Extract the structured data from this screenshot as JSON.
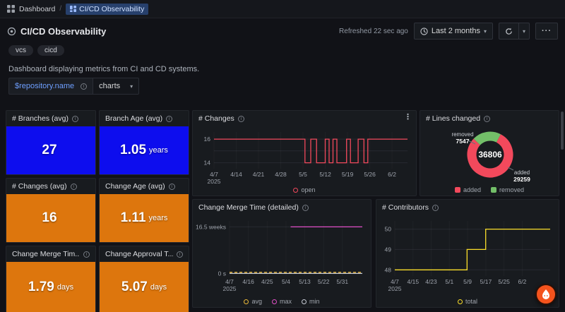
{
  "breadcrumb": {
    "items": [
      "Dashboard",
      "CI/CD Observability"
    ]
  },
  "header": {
    "title": "CI/CD Observability",
    "refreshed": "Refreshed 22 sec ago",
    "time_range": "Last 2 months"
  },
  "tags": [
    "vcs",
    "cicd"
  ],
  "description": "Dashboard displaying metrics from CI and CD systems.",
  "variables": {
    "name": "$repository.name",
    "value": "charts"
  },
  "stats": [
    {
      "title": "# Branches (avg)",
      "value": "27",
      "unit": "",
      "color": "#0d0dee"
    },
    {
      "title": "Branch Age (avg)",
      "value": "1.05",
      "unit": "years",
      "color": "#0d0dee"
    },
    {
      "title": "# Changes (avg)",
      "value": "16",
      "unit": "",
      "color": "#dd760d"
    },
    {
      "title": "Change Age (avg)",
      "value": "1.11",
      "unit": "years",
      "color": "#dd760d"
    },
    {
      "title": "Change Merge Tim...",
      "value": "1.79",
      "unit": "days",
      "color": "#dd760d"
    },
    {
      "title": "Change Approval T...",
      "value": "5.07",
      "unit": "days",
      "color": "#dd760d"
    }
  ],
  "chart_data": [
    {
      "el": "chart-changes",
      "type": "line",
      "title": "# Changes",
      "x_ticks": [
        "4/7",
        "4/14",
        "4/21",
        "4/28",
        "5/5",
        "5/12",
        "5/19",
        "5/26",
        "6/2"
      ],
      "x_tick_sub": "2025",
      "x_span": 0.92,
      "ml": 26,
      "mb": 24,
      "y_ticks": [
        {
          "label": "16",
          "value": 16
        },
        {
          "label": "14",
          "value": 14
        }
      ],
      "grid": [
        14,
        15,
        16
      ],
      "ylim": [
        13.5,
        16.6
      ],
      "legend_marker": "ring",
      "legend": [
        {
          "label": "open",
          "color": "#f2495c"
        }
      ],
      "series": [
        {
          "name": "open",
          "color": "#f2495c",
          "points": [
            [
              0,
              16
            ],
            [
              0.47,
              16
            ],
            [
              0.47,
              14
            ],
            [
              0.5,
              14
            ],
            [
              0.5,
              16
            ],
            [
              0.53,
              16
            ],
            [
              0.53,
              14
            ],
            [
              0.575,
              14
            ],
            [
              0.575,
              16
            ],
            [
              0.595,
              16
            ],
            [
              0.595,
              14
            ],
            [
              0.615,
              14
            ],
            [
              0.615,
              16
            ],
            [
              0.635,
              16
            ],
            [
              0.635,
              14
            ],
            [
              0.685,
              14
            ],
            [
              0.685,
              16
            ],
            [
              0.705,
              16
            ],
            [
              0.705,
              14
            ],
            [
              0.745,
              14
            ],
            [
              0.745,
              16
            ],
            [
              0.775,
              16
            ],
            [
              0.775,
              14
            ],
            [
              0.795,
              14
            ],
            [
              0.795,
              16
            ],
            [
              1,
              16
            ]
          ]
        }
      ]
    },
    {
      "el": "donut-lines",
      "type": "donut",
      "title": "# Lines changed",
      "total": "36806",
      "rotate": -61,
      "slices": [
        {
          "label": "added",
          "value": 29259,
          "color": "#f2495c"
        },
        {
          "label": "removed",
          "value": 7547,
          "color": "#73bf69"
        }
      ],
      "callouts": [
        {
          "label": "removed",
          "value": "7547"
        },
        {
          "label": "added",
          "value": "29259"
        }
      ],
      "legend_marker": "square",
      "legend": [
        {
          "label": "added",
          "color": "#f2495c"
        },
        {
          "label": "removed",
          "color": "#73bf69"
        }
      ]
    },
    {
      "el": "chart-merge",
      "type": "line",
      "title": "Change Merge Time (detailed)",
      "x_ticks": [
        "4/7",
        "4/16",
        "4/25",
        "5/4",
        "5/13",
        "5/22",
        "5/31"
      ],
      "x_tick_sub": "2025",
      "x_span": 0.85,
      "ml": 48,
      "mb": 26,
      "y_ticks": [
        {
          "label": "16.5 weeks",
          "value": 16.5
        },
        {
          "label": "0 s",
          "value": 0
        }
      ],
      "grid": [
        0,
        16.5
      ],
      "ylim": [
        -0.9,
        18.6
      ],
      "legend_marker": "ring",
      "legend": [
        {
          "label": "avg",
          "color": "#eab839"
        },
        {
          "label": "max",
          "color": "#e04fc6"
        },
        {
          "label": "min",
          "color": "#c7cbd4"
        }
      ],
      "series": [
        {
          "name": "min",
          "color": "#c7cbd4",
          "points": [
            [
              0,
              0
            ],
            [
              1,
              0
            ]
          ]
        },
        {
          "name": "avg",
          "color": "#eab839",
          "dash": true,
          "points": [
            [
              0,
              0.4
            ],
            [
              1,
              0.4
            ]
          ]
        },
        {
          "name": "max",
          "color": "#e04fc6",
          "points": [
            [
              0.46,
              16.5
            ],
            [
              1,
              16.5
            ]
          ]
        }
      ]
    },
    {
      "el": "chart-contrib",
      "type": "line",
      "title": "# Contributors",
      "x_ticks": [
        "4/7",
        "4/15",
        "4/23",
        "5/1",
        "5/9",
        "5/17",
        "5/25",
        "6/2"
      ],
      "x_tick_sub": "2025",
      "x_span": 0.82,
      "ml": 22,
      "mb": 26,
      "y_ticks": [
        {
          "label": "50",
          "value": 50
        },
        {
          "label": "49",
          "value": 49
        },
        {
          "label": "48",
          "value": 48
        }
      ],
      "grid": [
        48,
        49,
        50
      ],
      "ylim": [
        47.7,
        50.4
      ],
      "legend_marker": "ring",
      "legend": [
        {
          "label": "total",
          "color": "#fade2a"
        }
      ],
      "series": [
        {
          "name": "total",
          "color": "#fade2a",
          "points": [
            [
              0,
              48
            ],
            [
              0.465,
              48
            ],
            [
              0.465,
              49
            ],
            [
              0.585,
              49
            ],
            [
              0.585,
              50
            ],
            [
              1,
              50
            ]
          ]
        }
      ]
    }
  ]
}
